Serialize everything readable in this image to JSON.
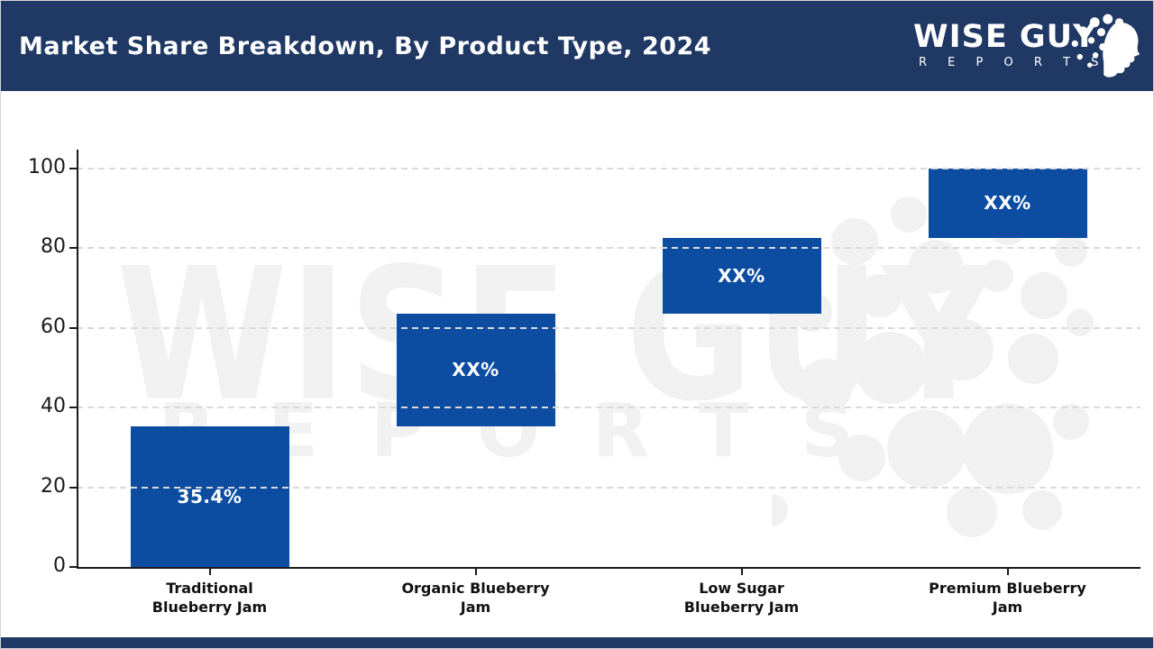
{
  "header": {
    "title": "Market Share Breakdown, By Product Type, 2024",
    "logo": {
      "line1": "WISE GUY",
      "line2": "R E P O R T S",
      "face_icon": "dotted-head-profile"
    }
  },
  "watermark": {
    "line1": "WISE GUY",
    "line2": "REPORTS",
    "face_icon": "dotted-head-profile"
  },
  "chart_data": {
    "type": "bar",
    "variant": "waterfall-floating-bars",
    "title": "Market Share Breakdown, By Product Type, 2024",
    "categories": [
      "Traditional Blueberry Jam",
      "Organic Blueberry Jam",
      "Low Sugar Blueberry Jam",
      "Premium Blueberry Jam"
    ],
    "category_lines": [
      [
        "Traditional",
        "Blueberry Jam"
      ],
      [
        "Organic Blueberry",
        "Jam"
      ],
      [
        "Low Sugar",
        "Blueberry Jam"
      ],
      [
        "Premium Blueberry",
        "Jam"
      ]
    ],
    "segments": [
      {
        "category": "Traditional Blueberry Jam",
        "start": 0,
        "end": 35.4,
        "label": "35.4%"
      },
      {
        "category": "Organic Blueberry Jam",
        "start": 35.4,
        "end": 63.6,
        "label": "XX%"
      },
      {
        "category": "Low Sugar Blueberry Jam",
        "start": 63.6,
        "end": 82.6,
        "label": "XX%"
      },
      {
        "category": "Premium Blueberry Jam",
        "start": 82.6,
        "end": 100,
        "label": "XX%"
      }
    ],
    "xlabel": "",
    "ylabel": "",
    "ylim": [
      0,
      105
    ],
    "yticks": [
      0,
      20,
      40,
      60,
      80,
      100
    ],
    "grid": "horizontal-dashed-over-bars",
    "legend": "none",
    "colors": {
      "bar": "#0c4da2",
      "bar_label": "#ffffff",
      "header_bar": "#1f3864",
      "gridline": "#d9d9d9",
      "axis": "#1a1a1a",
      "watermark": "#f1f1f2"
    }
  }
}
